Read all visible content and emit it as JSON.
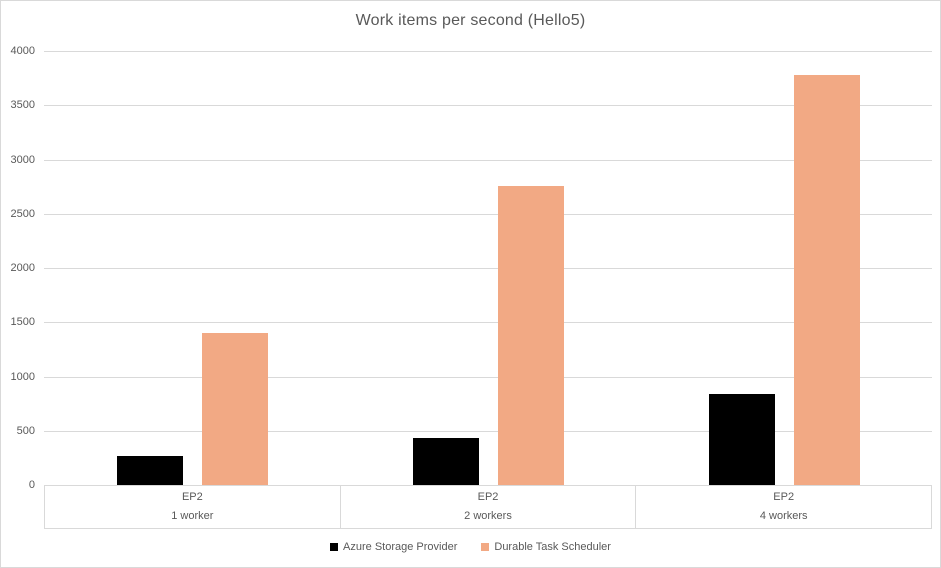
{
  "chart_data": {
    "type": "bar",
    "title": "Work items per second (Hello5)",
    "ylabel": "",
    "xlabel": "",
    "ylim": [
      0,
      4000
    ],
    "yticks": [
      0,
      500,
      1000,
      1500,
      2000,
      2500,
      3000,
      3500,
      4000
    ],
    "grid": true,
    "legend_position": "bottom",
    "categories": [
      {
        "line1": "EP2",
        "line2": "1 worker"
      },
      {
        "line1": "EP2",
        "line2": "2 workers"
      },
      {
        "line1": "EP2",
        "line2": "4 workers"
      }
    ],
    "series": [
      {
        "name": "Azure Storage Provider",
        "color": "#000000",
        "values": [
          270,
          430,
          840
        ]
      },
      {
        "name": "Durable Task Scheduler",
        "color": "#F2A984",
        "values": [
          1400,
          2760,
          3780
        ]
      }
    ],
    "colors": {
      "gridline": "#D9D9D9",
      "axis_border": "#D9D9D9",
      "text": "#595959",
      "background": "#FFFFFF"
    }
  }
}
